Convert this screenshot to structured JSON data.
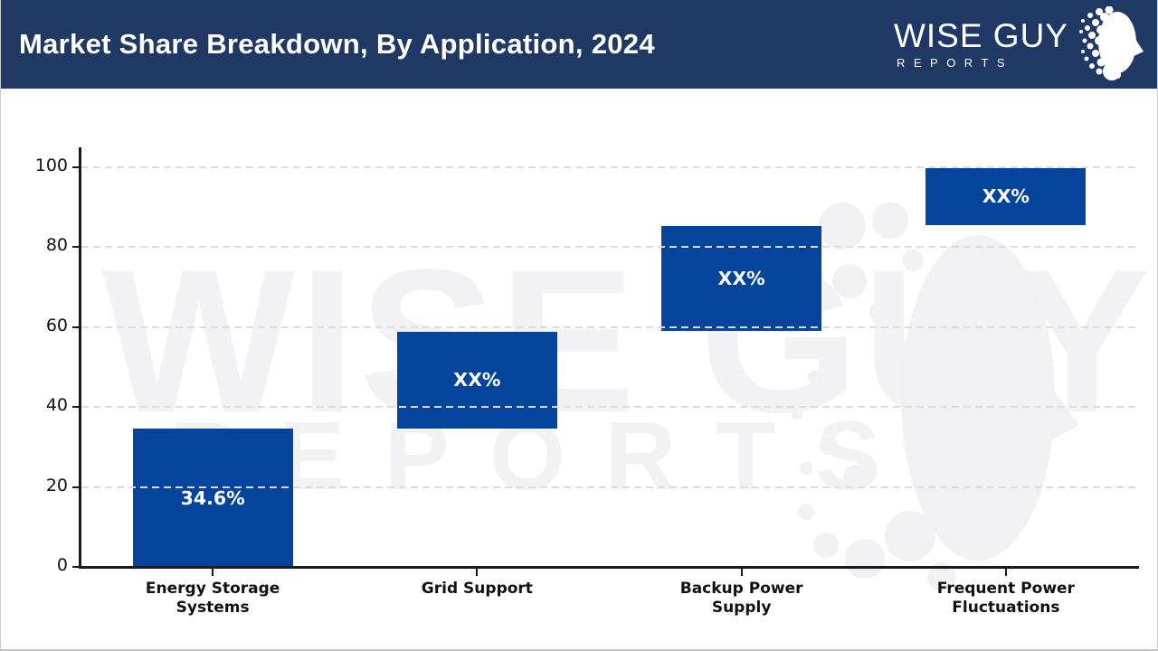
{
  "header": {
    "title": "Market Share Breakdown, By Application, 2024",
    "logo": {
      "primary": "WISE GUY",
      "secondary": "REPORTS"
    }
  },
  "watermark": {
    "primary": "WISE GUY",
    "secondary": "REPORTS"
  },
  "chart_data": {
    "type": "bar",
    "subtype": "waterfall",
    "title": "Market Share Breakdown, By Application, 2024",
    "unit": "%",
    "categories": [
      "Energy Storage Systems",
      "Grid Support",
      "Backup Power Supply",
      "Frequent Power Fluctuations"
    ],
    "segments": [
      {
        "category": "Energy Storage Systems",
        "start": 0,
        "end": 34.6,
        "label": "34.6%"
      },
      {
        "category": "Grid Support",
        "start": 34.6,
        "end": 58.9,
        "label": "XX%"
      },
      {
        "category": "Backup Power Supply",
        "start": 59.0,
        "end": 85.3,
        "label": "XX%"
      },
      {
        "category": "Frequent Power Fluctuations",
        "start": 85.5,
        "end": 99.8,
        "label": "XX%"
      }
    ],
    "segment_sizes_estimated": [
      34.6,
      24.3,
      26.3,
      14.3
    ],
    "yticks": [
      0,
      20,
      40,
      60,
      80,
      100
    ],
    "ylim": [
      0,
      105
    ],
    "xlabel": "",
    "ylabel": "",
    "grid": "horizontal-dashed-above-bars",
    "legend": "none",
    "bar_color": "#04449c",
    "bar_label_color": "#ffffff"
  },
  "colors": {
    "header_bg": "#1f3864",
    "bar": "#04449c",
    "axis": "#1a1a1a",
    "gridline": "#dcdcdc",
    "watermark": "#f1f1f4",
    "background": "#ffffff",
    "border": "#c9c9c9",
    "title_text": "#ffffff",
    "tick_text": "#111111"
  }
}
